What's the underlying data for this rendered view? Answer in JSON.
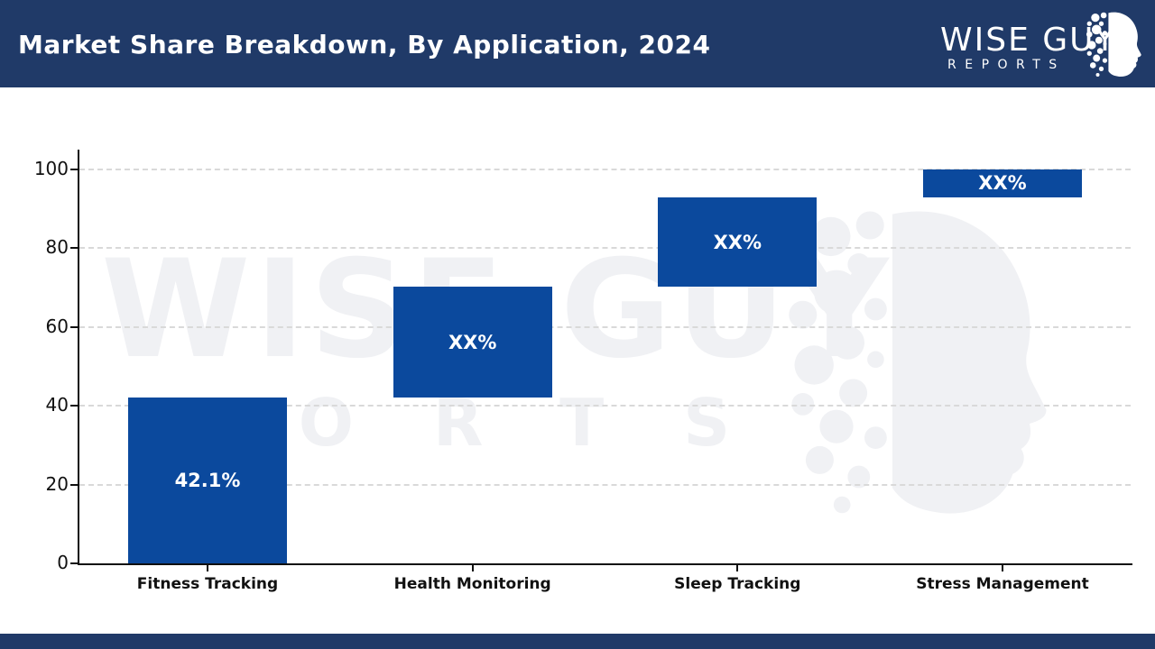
{
  "header": {
    "logo": {
      "line1": "WISE GUY",
      "line2": "REPORTS"
    },
    "bg_color": "#203a68"
  },
  "watermark": {
    "line1": "WISE GUY",
    "line2": "PORTS"
  },
  "footer": {
    "bg_color": "#203a68"
  },
  "chart_data": {
    "type": "bar",
    "variant": "waterfall",
    "title": "Market Share Breakdown, By Application, 2024",
    "categories": [
      "Fitness Tracking",
      "Health Monitoring",
      "Sleep Tracking",
      "Stress Management"
    ],
    "segments": [
      {
        "category": "Fitness Tracking",
        "start": 0,
        "end": 42.1,
        "label": "42.1%"
      },
      {
        "category": "Health Monitoring",
        "start": 42.1,
        "end": 70.1,
        "label": "XX%"
      },
      {
        "category": "Sleep Tracking",
        "start": 70.1,
        "end": 92.7,
        "label": "XX%"
      },
      {
        "category": "Stress Management",
        "start": 92.7,
        "end": 100,
        "label": "XX%"
      }
    ],
    "values": [
      42.1,
      28.0,
      22.6,
      7.3
    ],
    "y_ticks": [
      0,
      20,
      40,
      60,
      80,
      100
    ],
    "ylim": [
      0,
      105
    ],
    "xlabel": "",
    "ylabel": "",
    "grid": "horizontal-dashed",
    "legend": "none",
    "bar_color": "#0b499d",
    "bar_label_color": "#ffffff"
  }
}
